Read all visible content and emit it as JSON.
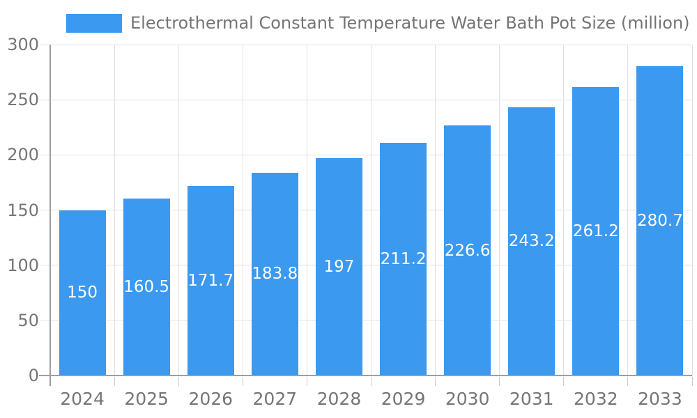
{
  "legend": {
    "swatch_color": "#3b99f0",
    "label": "Electrothermal Constant Temperature Water Bath Pot Size (million)"
  },
  "colors": {
    "bar": "#3b99f0",
    "axis_line": "#9e9e9e",
    "grid_line": "#e0e0e0",
    "tick_label": "#757575",
    "value_label": "#ffffff",
    "background": "#ffffff"
  },
  "chart_data": {
    "type": "bar",
    "title": "Electrothermal Constant Temperature Water Bath Pot Size (million)",
    "categories": [
      "2024",
      "2025",
      "2026",
      "2027",
      "2028",
      "2029",
      "2030",
      "2031",
      "2032",
      "2033"
    ],
    "values": [
      150,
      160.5,
      171.7,
      183.8,
      197,
      211.2,
      226.6,
      243.2,
      261.2,
      280.7
    ],
    "value_labels": [
      "150",
      "160.5",
      "171.7",
      "183.8",
      "197",
      "211.2",
      "226.6",
      "243.2",
      "261.2",
      "280.7"
    ],
    "xlabel": "",
    "ylabel": "",
    "ylim": [
      0,
      300
    ],
    "yticks": [
      0,
      50,
      100,
      150,
      200,
      250,
      300
    ],
    "grid": true,
    "legend_position": "top-left",
    "value_labels_position": "inside-center"
  }
}
